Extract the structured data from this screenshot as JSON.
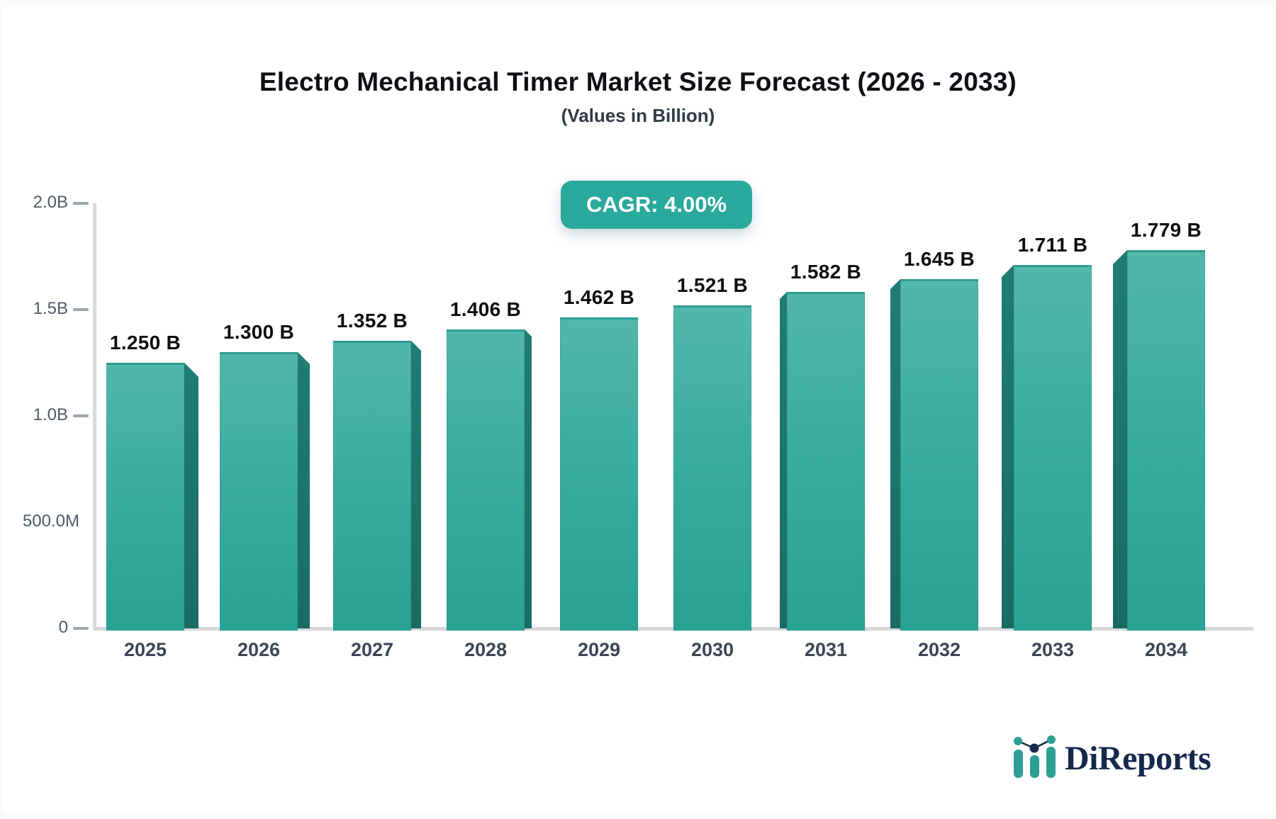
{
  "page": {
    "background": "#f8fafc",
    "card_background": "#ffffff"
  },
  "header": {
    "title": "Electro Mechanical Timer Market Size Forecast (2026 - 2033)",
    "subtitle": "(Values in Billion)"
  },
  "badge": {
    "label": "CAGR: 4.00%",
    "background": "#2aa99d",
    "text_color": "#ffffff"
  },
  "chart_data": {
    "type": "bar",
    "title": "Electro Mechanical Timer Market Size Forecast (2026 - 2033)",
    "subtitle": "(Values in Billion)",
    "cagr_label": "CAGR: 4.00%",
    "categories": [
      "2025",
      "2026",
      "2027",
      "2028",
      "2029",
      "2030",
      "2031",
      "2032",
      "2033",
      "2034"
    ],
    "values_billions": [
      1.25,
      1.3,
      1.352,
      1.406,
      1.462,
      1.521,
      1.582,
      1.645,
      1.711,
      1.779
    ],
    "value_labels": [
      "1.250 B",
      "1.300 B",
      "1.352 B",
      "1.406 B",
      "1.462 B",
      "1.521 B",
      "1.582 B",
      "1.645 B",
      "1.711 B",
      "1.779 B"
    ],
    "y_axis": {
      "tick_labels": [
        "2.0B",
        "1.5B",
        "1.0B",
        "500.0M",
        "0"
      ],
      "tick_values_billions": [
        2.0,
        1.5,
        1.0,
        0.5,
        0
      ],
      "tick_has_dash": [
        true,
        true,
        true,
        false,
        true
      ],
      "range_billions": [
        0,
        2.0
      ]
    },
    "grid": false,
    "legend": false,
    "bar_color_top": "#52b7ab",
    "bar_color_bottom": "#2aa195",
    "bar_side_color": "#1f7d73"
  },
  "footer": {
    "logo_text": "DiReports",
    "logo_icon": "mini-bar-line-chart-icon",
    "logo_text_color": "#16294b",
    "logo_accent_color": "#2d9f95"
  }
}
